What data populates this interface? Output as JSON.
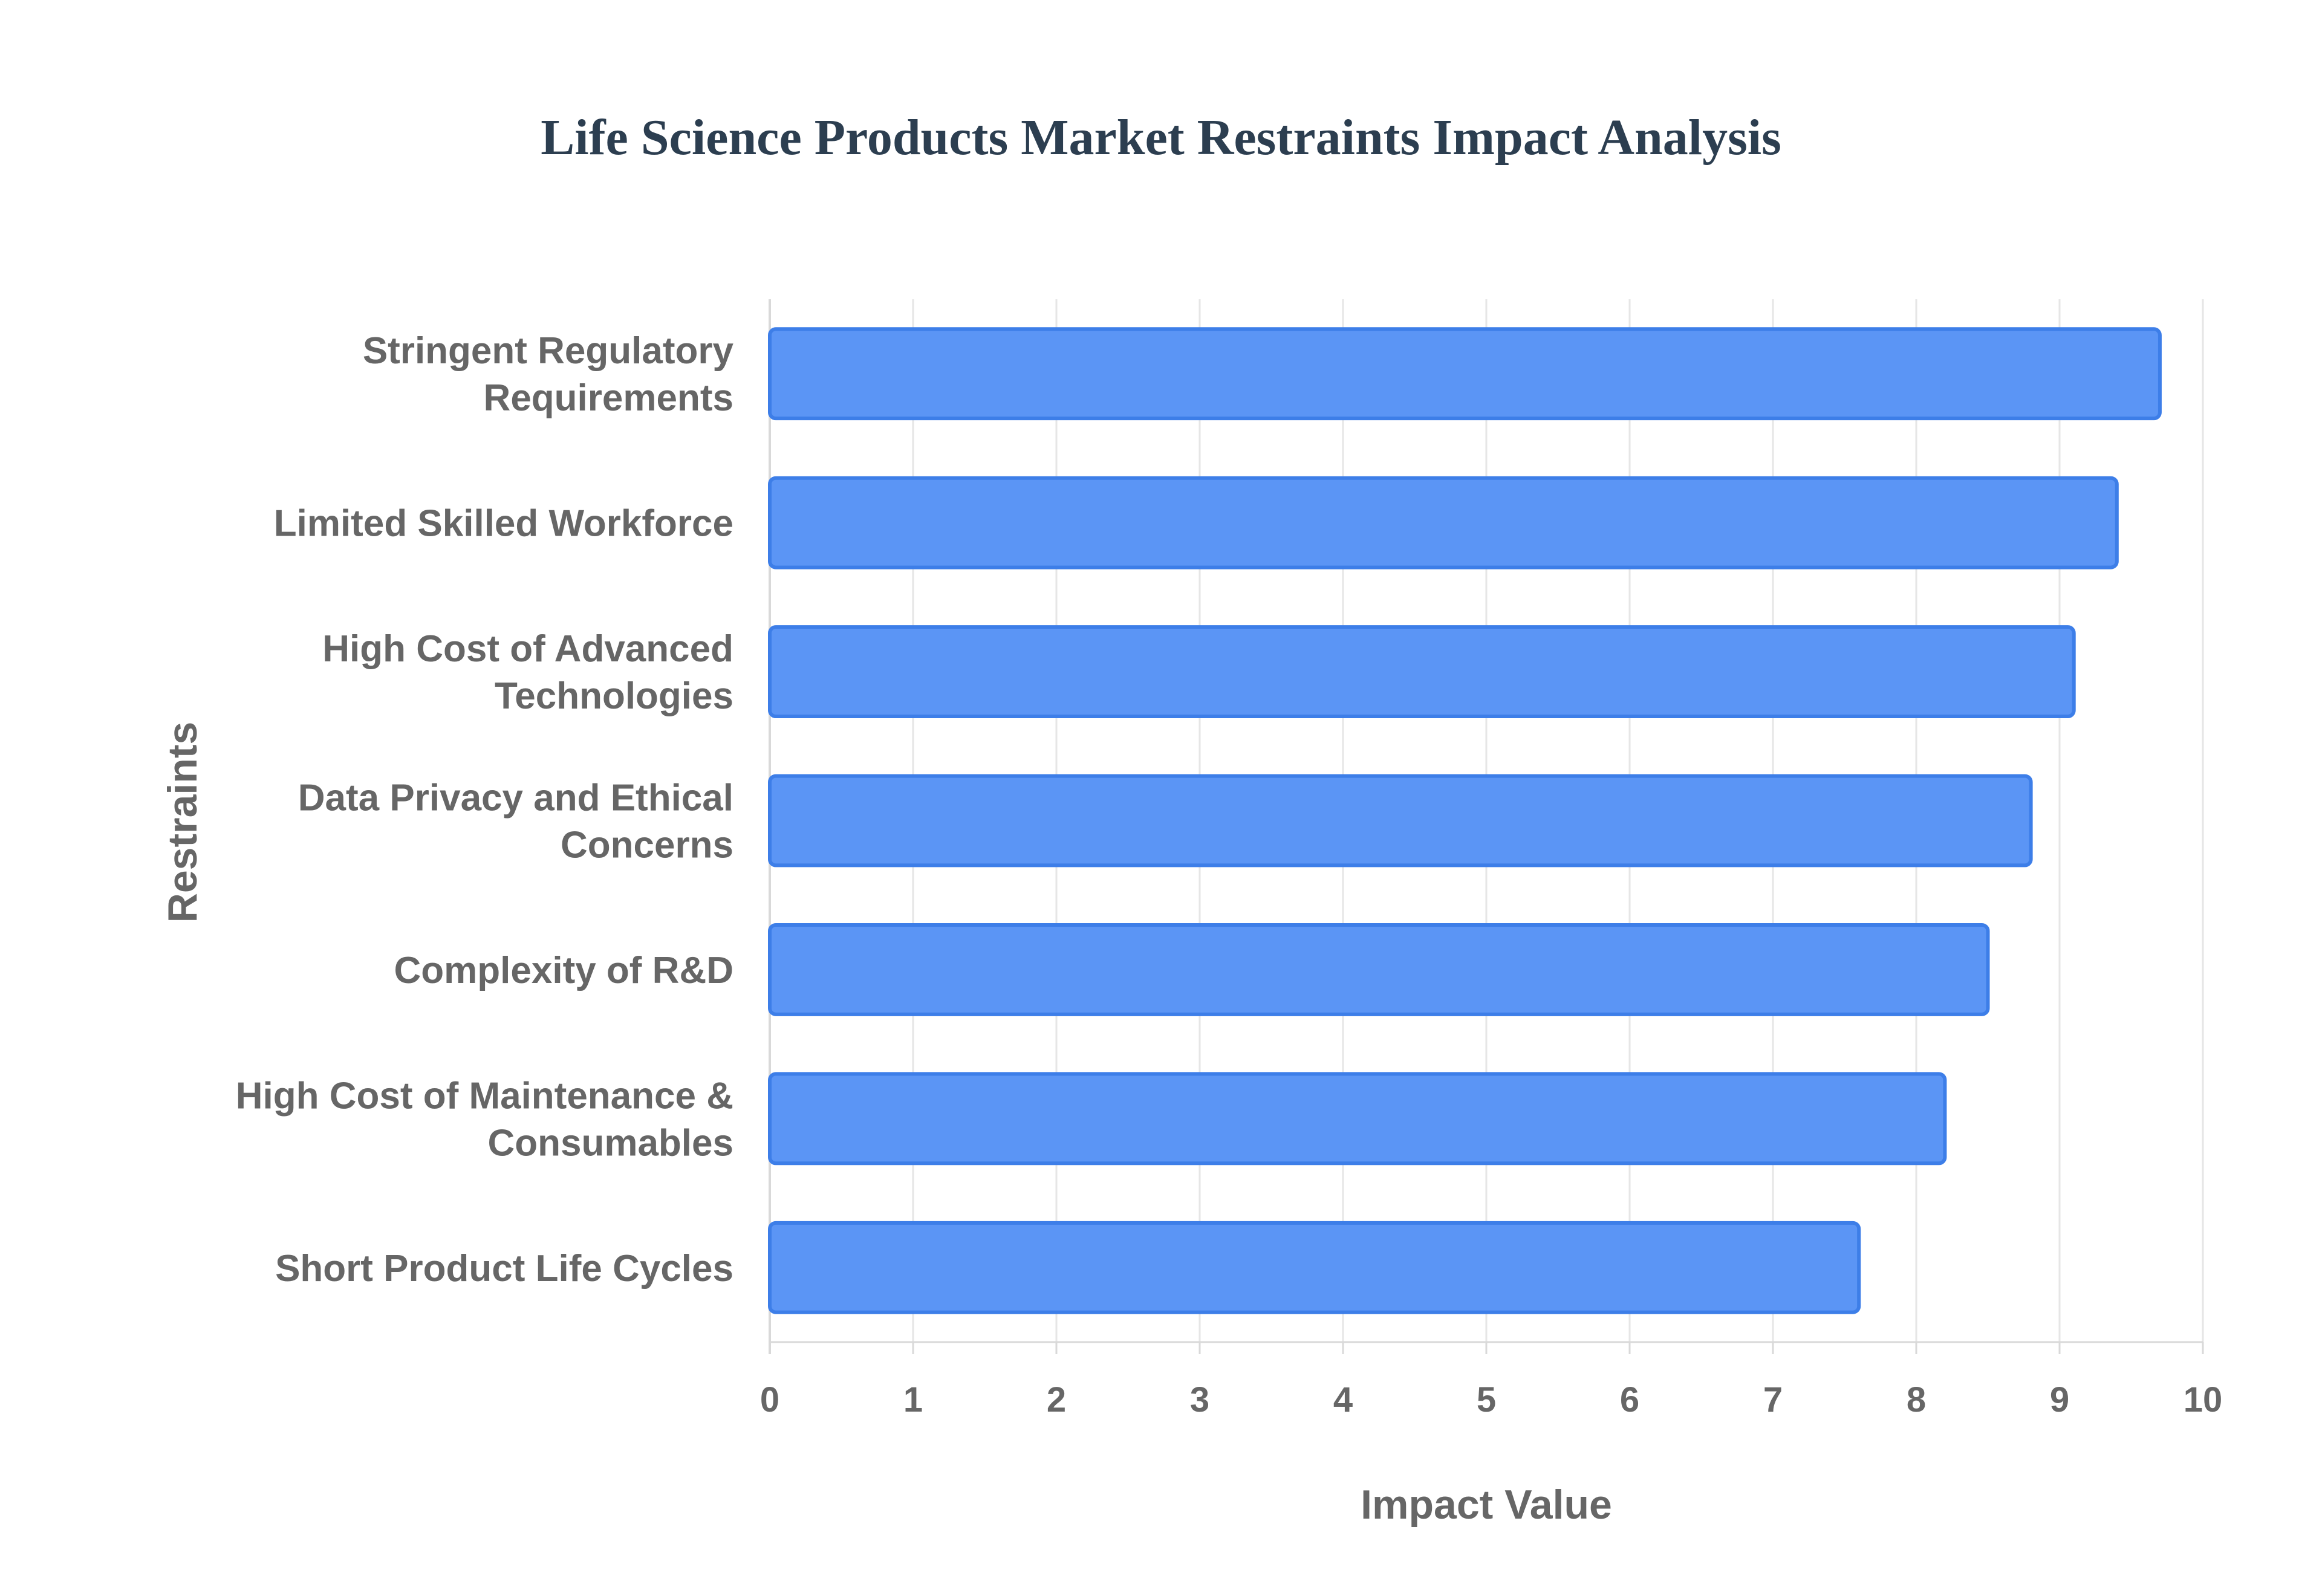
{
  "chart_data": {
    "type": "bar",
    "orientation": "horizontal",
    "title": "Life Science Products Market Restraints Impact Analysis",
    "xlabel": "Impact Value",
    "ylabel": "Restraints",
    "categories": [
      [
        "Stringent Regulatory",
        "Requirements"
      ],
      [
        "Limited Skilled Workforce"
      ],
      [
        "High Cost of Advanced",
        "Technologies"
      ],
      [
        "Data Privacy and Ethical",
        "Concerns"
      ],
      [
        "Complexity of R&D"
      ],
      [
        "High Cost of Maintenance &",
        "Consumables"
      ],
      [
        "Short Product Life Cycles"
      ]
    ],
    "values": [
      9.7,
      9.4,
      9.1,
      8.8,
      8.5,
      8.2,
      7.6
    ],
    "xlim": [
      0,
      10
    ],
    "xticks": [
      "0",
      "1",
      "2",
      "3",
      "4",
      "5",
      "6",
      "7",
      "8",
      "9",
      "10"
    ],
    "grid": true,
    "legend": "none",
    "colors": {
      "bar_fill": "#5b95f5",
      "bar_stroke": "#3d7ee8",
      "grid": "#e6e6e6",
      "axis": "#d9d9d9"
    }
  }
}
